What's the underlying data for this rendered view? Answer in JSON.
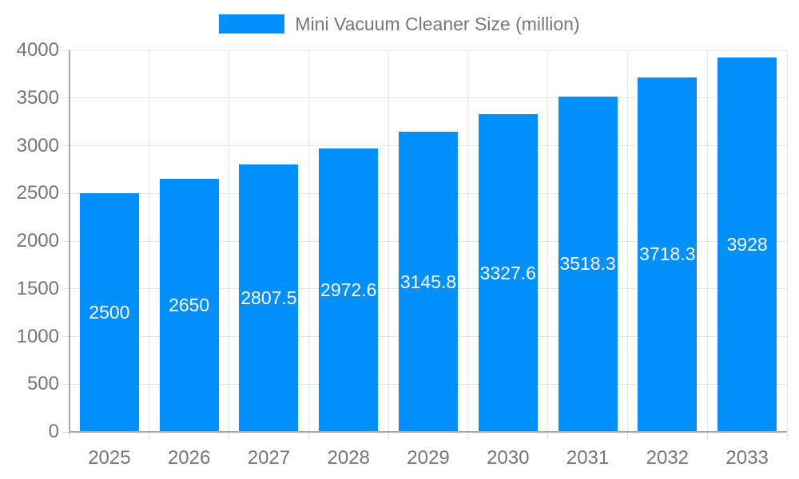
{
  "chart_data": {
    "type": "bar",
    "title": "Mini Vacuum Cleaner Size (million)",
    "legend_position": "top",
    "grid": true,
    "categories": [
      "2025",
      "2026",
      "2027",
      "2028",
      "2029",
      "2030",
      "2031",
      "2032",
      "2033"
    ],
    "values": [
      2500,
      2650,
      2807.5,
      2972.6,
      3145.8,
      3327.6,
      3518.3,
      3718.3,
      3928
    ],
    "value_labels": [
      "2500",
      "2650",
      "2807.5",
      "2972.6",
      "3145.8",
      "3327.6",
      "3518.3",
      "3718.3",
      "3928"
    ],
    "xlabel": "",
    "ylabel": "",
    "ylim": [
      0,
      4000
    ],
    "ytick_step": 500,
    "ytick_labels": [
      "0",
      "500",
      "1000",
      "1500",
      "2000",
      "2500",
      "3000",
      "3500",
      "4000"
    ],
    "colors": {
      "bar": "#008FFB",
      "axis_text": "#75767a",
      "grid_line": "#e7e7e7",
      "tick_line": "#e0e0e0",
      "axis_line": "#a9a9a9",
      "value_label": "#ffffff",
      "background": "#ffffff"
    }
  }
}
